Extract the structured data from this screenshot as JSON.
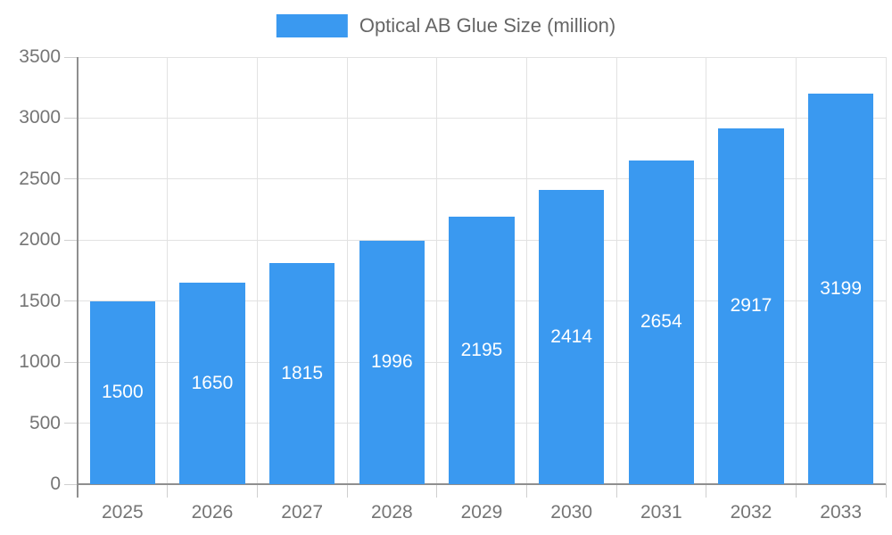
{
  "chart_data": {
    "type": "bar",
    "title": "Optical AB Glue Size (million)",
    "legend": {
      "label": "Optical AB Glue Size (million)",
      "position": "top"
    },
    "categories": [
      "2025",
      "2026",
      "2027",
      "2028",
      "2029",
      "2030",
      "2031",
      "2032",
      "2033"
    ],
    "series": [
      {
        "name": "Optical AB Glue Size (million)",
        "values": [
          1500,
          1650,
          1815,
          1996,
          2195,
          2414,
          2654,
          2917,
          3199
        ]
      }
    ],
    "xlabel": "",
    "ylabel": "",
    "ylim": [
      0,
      3500
    ],
    "ytick_step": 500,
    "grid": true,
    "value_labels_position": "inside-middle",
    "colors": {
      "bar": "#3A99F0",
      "grid": "#E2E2E2",
      "axis": "#8F8F8F",
      "tick": "#CFCFCF",
      "axis_text": "#757575",
      "legend_text": "#666666",
      "value_label_text": "#FFFFFF",
      "background": "#FFFFFF"
    }
  }
}
